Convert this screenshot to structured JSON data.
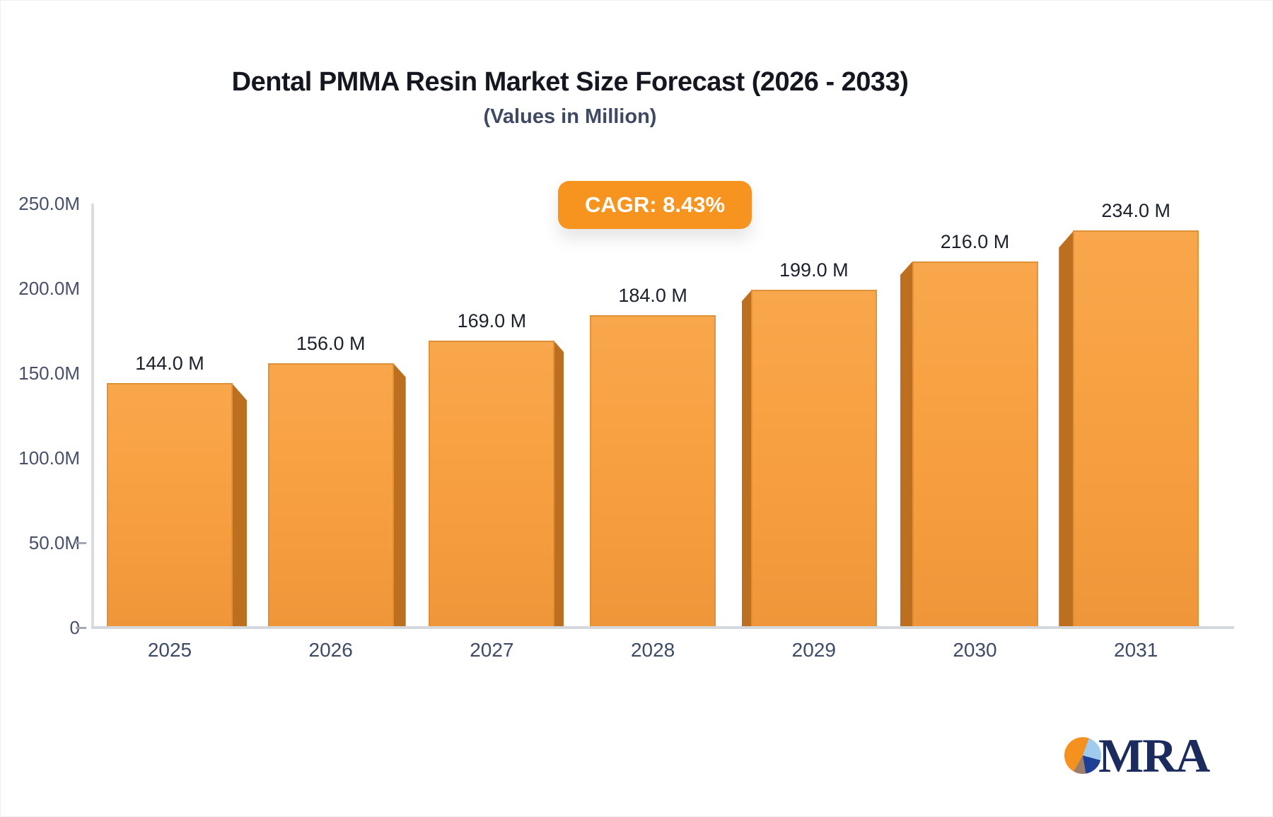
{
  "header": {
    "title": "Dental PMMA Resin Market Size Forecast (2026 - 2033)",
    "subtitle": "(Values in Million)",
    "cagr_label": "CAGR: 8.43%"
  },
  "chart_data": {
    "type": "bar",
    "title": "Dental PMMA Resin Market Size Forecast (2026 - 2033)",
    "subtitle": "(Values in Million)",
    "cagr": "8.43%",
    "categories": [
      "2025",
      "2026",
      "2027",
      "2028",
      "2029",
      "2030",
      "2031"
    ],
    "values": [
      144.0,
      156.0,
      169.0,
      184.0,
      199.0,
      216.0,
      234.0
    ],
    "value_labels": [
      "144.0 M",
      "156.0 M",
      "169.0 M",
      "184.0 M",
      "199.0 M",
      "216.0 M",
      "234.0 M"
    ],
    "unit": "Million",
    "xlabel": "",
    "ylabel": "",
    "ylim": [
      0,
      250
    ],
    "y_tick_values": [
      0,
      50,
      100,
      150,
      200,
      250
    ],
    "y_tick_labels": [
      "0",
      "50.0M",
      "100.0M",
      "150.0M",
      "200.0M",
      "250.0M"
    ],
    "y_ticks_with_dash": [
      0,
      50
    ],
    "grid": false,
    "legend": "none",
    "bar_color": "#f7a041",
    "bar_side_color": "#bc6f1e"
  },
  "colors": {
    "badge_bg": "#f6941f",
    "badge_text": "#ffffff",
    "axis_line": "#d9dce1",
    "y_label_text": "#47506a",
    "x_label_text": "#3d4b66",
    "value_label_text": "#1b212c",
    "title_text": "#14171f",
    "subtitle_text": "#3e4a63",
    "logo_text": "#1b2b5e"
  },
  "logo": {
    "text": "MRA"
  }
}
